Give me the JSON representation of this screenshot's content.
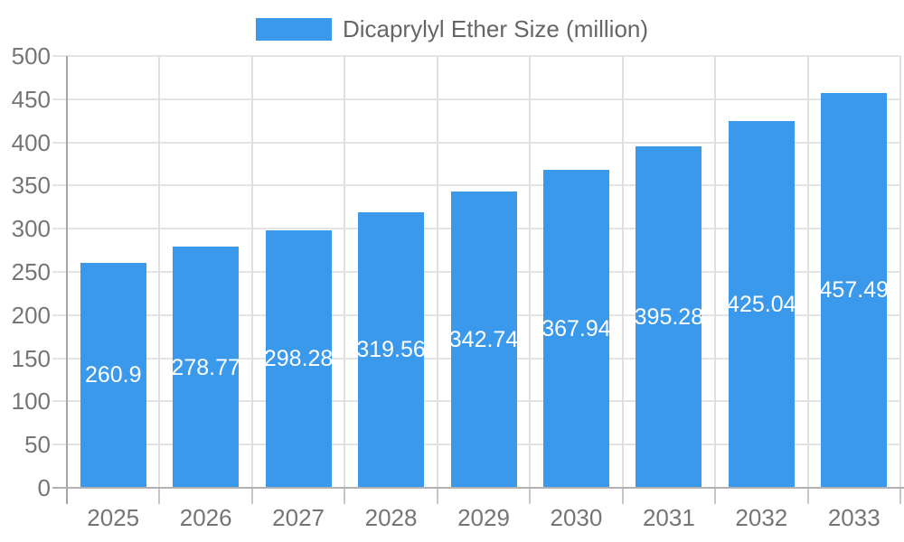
{
  "chart_data": {
    "type": "bar",
    "title": "Dicaprylyl Ether Size (million)",
    "categories": [
      "2025",
      "2026",
      "2027",
      "2028",
      "2029",
      "2030",
      "2031",
      "2032",
      "2033"
    ],
    "values": [
      260.9,
      278.77,
      298.28,
      319.56,
      342.74,
      367.94,
      395.28,
      425.04,
      457.49
    ],
    "value_labels": [
      "260.9",
      "278.77",
      "298.28",
      "319.56",
      "342.74",
      "367.94",
      "395.28",
      "425.04",
      "457.49"
    ],
    "xlabel": "",
    "ylabel": "",
    "ylim": [
      0,
      500
    ],
    "ytick_step": 50,
    "grid": true,
    "legend_position": "top",
    "colors": {
      "bar": "#3B99EC",
      "value_label": "#ffffff",
      "axis_label": "#757575",
      "legend_text": "#666666",
      "gridline": "#e4e4e4",
      "axis_line": "#a6a6a6"
    }
  }
}
